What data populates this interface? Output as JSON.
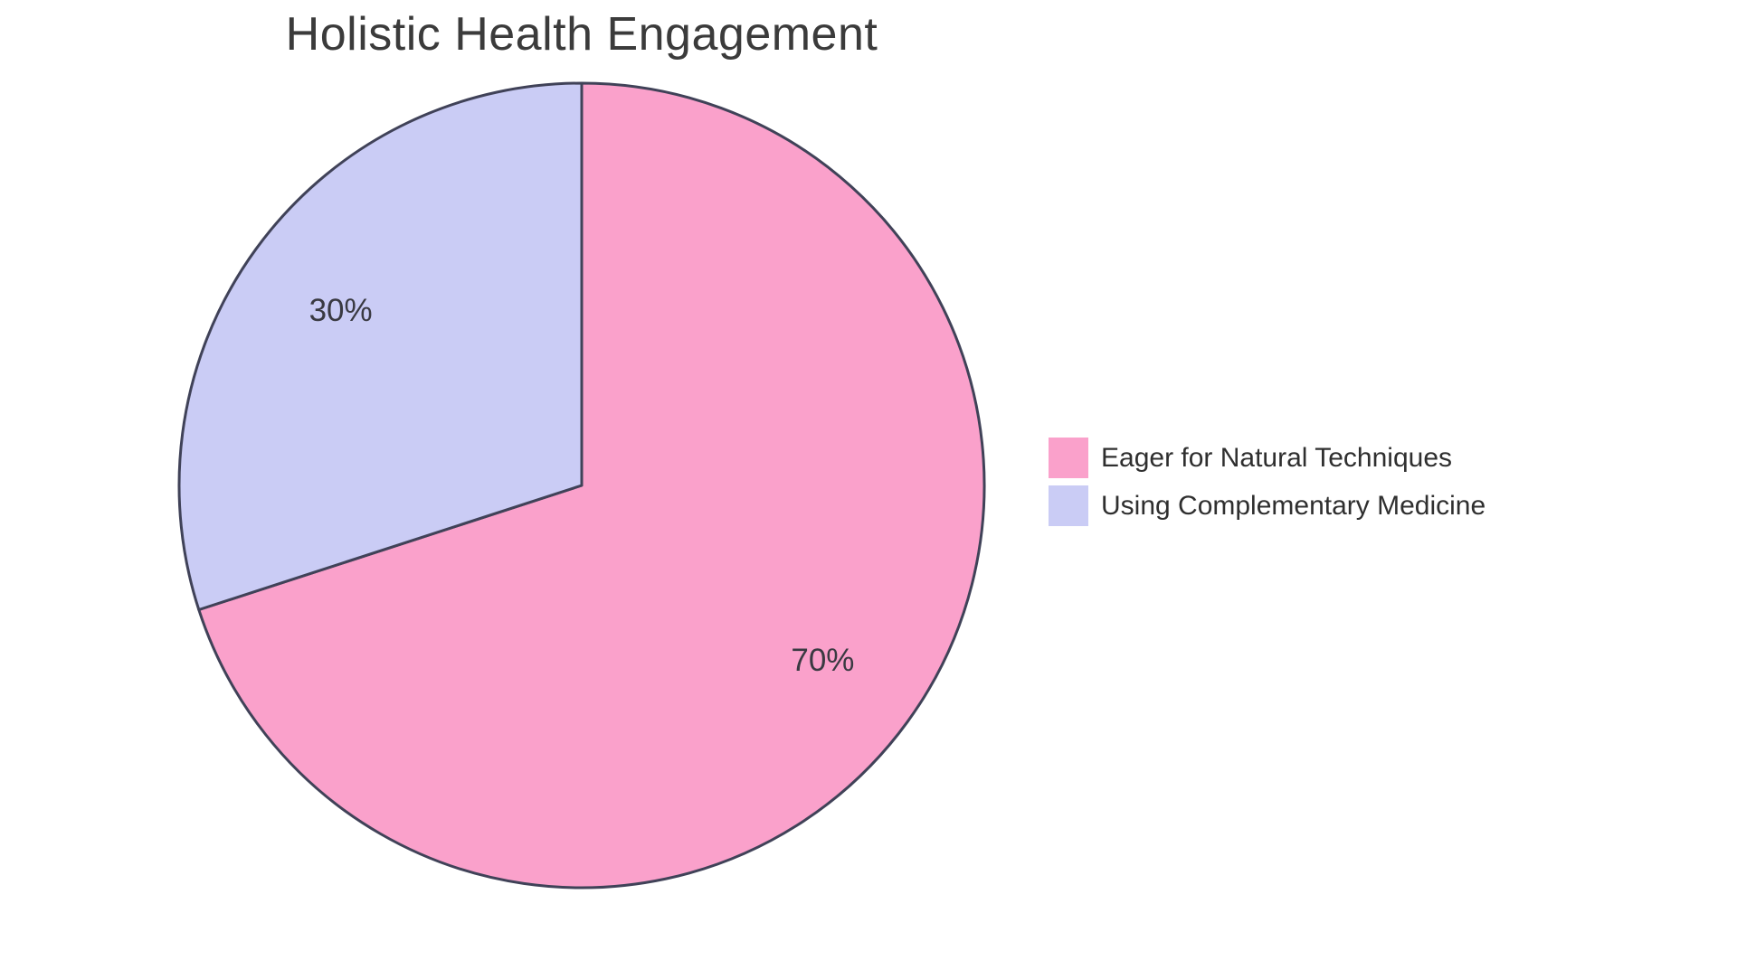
{
  "page": {
    "background_color": "#FFFFFF"
  },
  "chart_data": {
    "type": "pie",
    "title": "Holistic Health Engagement",
    "segments": [
      {
        "label": "Eager for Natural Techniques",
        "value": 70,
        "display": "70%",
        "color": "#FAA1CB"
      },
      {
        "label": "Using Complementary Medicine",
        "value": 30,
        "display": "30%",
        "color": "#CACCF5"
      }
    ],
    "start_angle_deg": 0,
    "direction": "clockwise",
    "stroke_color": "#404258",
    "stroke_width": 3,
    "slice_label_color": "#3A3A42",
    "title_color": "#3B3B3B",
    "legend_position": "right",
    "legend_text_color": "#2F2F2F"
  }
}
